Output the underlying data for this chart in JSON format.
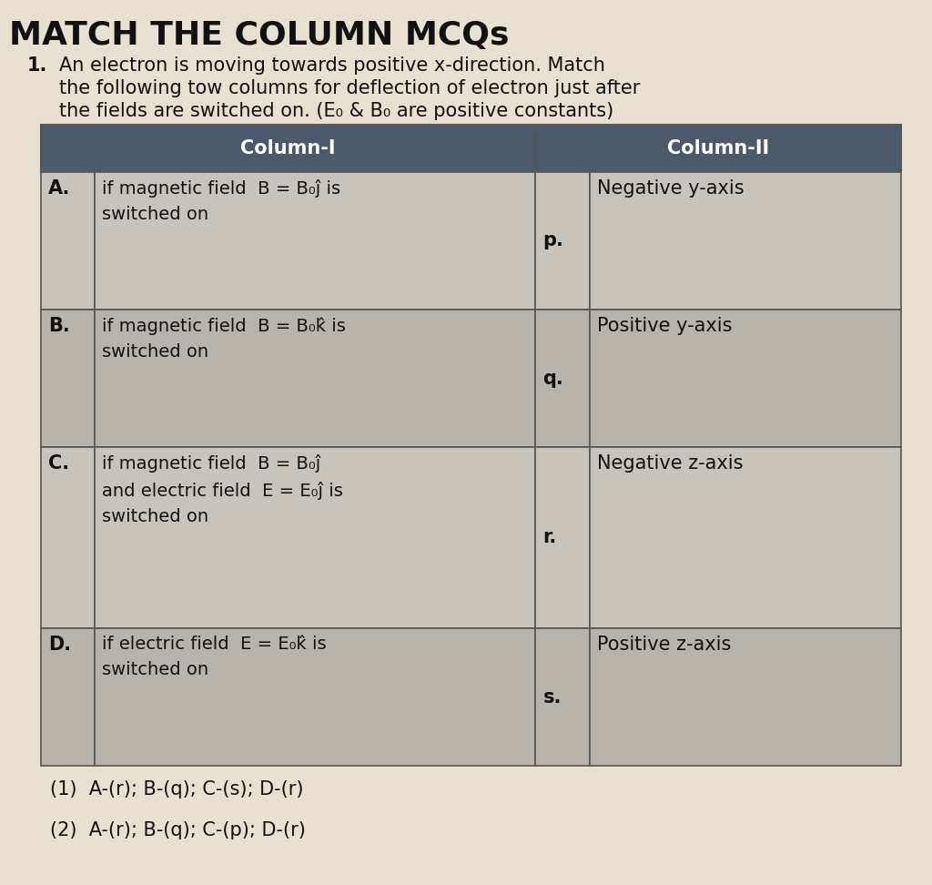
{
  "title": "MATCH THE COLUMN MCQs",
  "question_number": "1.",
  "question_text_line1": "An electron is moving towards positive x-direction. Match",
  "question_text_line2": "the following tow columns for deflection of electron just after",
  "question_text_line3": "the fields are switched on. (E₀ & B₀ are positive constants)",
  "header_col1": "Column-I",
  "header_col2": "Column-II",
  "col1_labels": [
    "A.",
    "B.",
    "C.",
    "D."
  ],
  "col1_texts": [
    "if magnetic field  B = B₀ĵ is\nswitched on",
    "if magnetic field  B = B₀k̂ is\nswitched on",
    "if magnetic field  B = B₀ĵ\nand electric field  E = E₀ĵ is\nswitched on",
    "if electric field  E = E₀k̂ is\nswitched on"
  ],
  "col2_labels": [
    "p.",
    "q.",
    "r.",
    "s."
  ],
  "col2_texts": [
    "Negative y-axis",
    "Positive y-axis",
    "Negative z-axis",
    "Positive z-axis"
  ],
  "answers": [
    "(1)  A-(r); B-(q); C-(s); D-(r)",
    "(2)  A-(r); B-(q); C-(p); D-(r)"
  ],
  "bg_color": "#d8d0c0",
  "page_bg": "#e8e0d0",
  "header_bg": "#4a5a6a",
  "header_text_color": "#ffffff",
  "row_A_bg": "#c8c4bc",
  "row_B_bg": "#b8b4ac",
  "row_C_bg": "#c8c4bc",
  "row_D_bg": "#b8b4ac",
  "col2_A_bg": "#c8c4bc",
  "col2_B_bg": "#b8b4ac",
  "col2_C_bg": "#c8c4bc",
  "col2_D_bg": "#b8b4ac",
  "border_color": "#555555",
  "text_color": "#111111",
  "title_fontsize": 26,
  "body_fontsize": 15,
  "table_fontsize": 14
}
